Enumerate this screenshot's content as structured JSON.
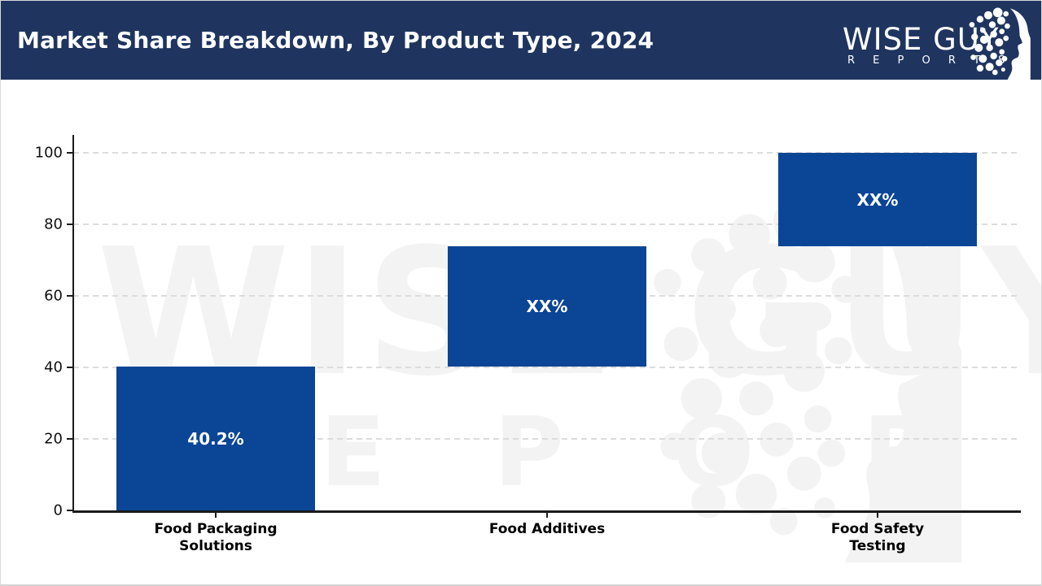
{
  "header": {
    "title": "Market Share Breakdown, By Product Type, 2024",
    "bg_color": "#1f3560",
    "logo": {
      "wordmark": "WISE GUY",
      "subtext": "REPORTS",
      "subtext_spaced": "R E P O R T S",
      "head_icon": "dotted-face-profile"
    }
  },
  "watermark": {
    "line1": "WISE GUY",
    "line2": "R E P O R T S",
    "head_icon": "dotted-face-profile",
    "color": "#f3f3f3"
  },
  "chart_data": {
    "type": "bar",
    "variant": "waterfall",
    "title": "Market Share Breakdown, By Product Type, 2024",
    "categories": [
      "Food Packaging Solutions",
      "Food Additives",
      "Food Safety Testing"
    ],
    "category_label_lines": [
      [
        "Food Packaging",
        "Solutions"
      ],
      [
        "Food Additives"
      ],
      [
        "Food Safety",
        "Testing"
      ]
    ],
    "segments": [
      {
        "category": "Food Packaging Solutions",
        "start": 0,
        "end": 40.2,
        "label": "40.2%"
      },
      {
        "category": "Food Additives",
        "start": 40.2,
        "end": 73.8,
        "label": "XX%"
      },
      {
        "category": "Food Safety Testing",
        "start": 73.8,
        "end": 100,
        "label": "XX%"
      }
    ],
    "xlabel": "",
    "ylabel": "",
    "yticks": [
      0,
      20,
      40,
      60,
      80,
      100
    ],
    "ylim": [
      0,
      105
    ],
    "grid": "horizontal-dashed",
    "legend": "none",
    "bar_color": "#0b4596",
    "value_label_color": "#ffffff"
  }
}
